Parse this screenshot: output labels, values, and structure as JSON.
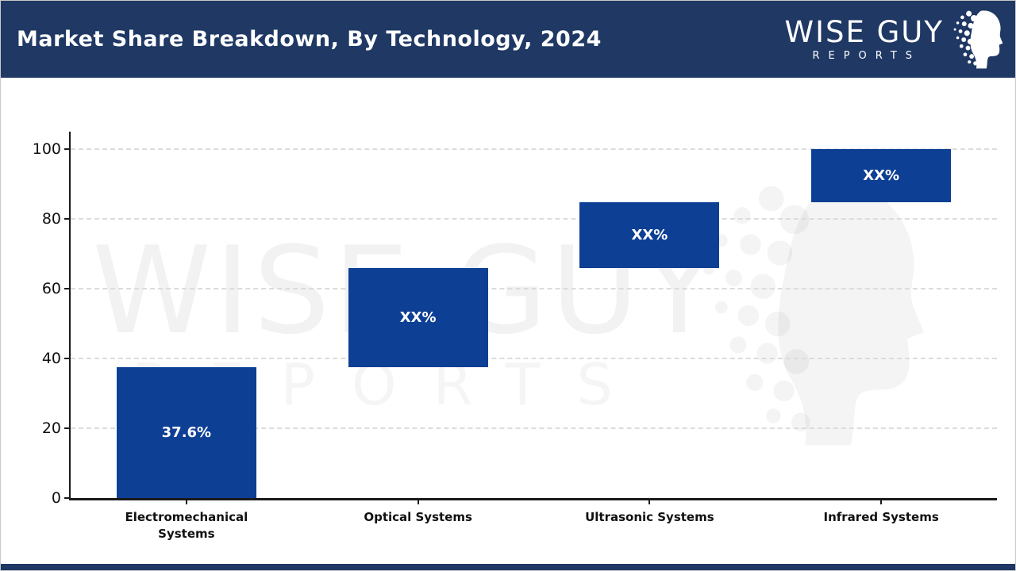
{
  "header": {
    "title": "Market Share Breakdown, By Technology, 2024",
    "logo": {
      "line1": "WISE GUY",
      "line2": "REPORTS"
    }
  },
  "watermark": {
    "line1": "WISE GUY",
    "line2": "REPORTS"
  },
  "chart_data": {
    "type": "bar",
    "variant": "waterfall-stacked-segments",
    "title": "Market Share Breakdown, By Technology, 2024",
    "categories": [
      "Electromechanical Systems",
      "Optical Systems",
      "Ultrasonic Systems",
      "Infrared Systems"
    ],
    "segments": [
      {
        "category": "Electromechanical Systems",
        "start": 0,
        "end": 37.6,
        "label": "37.6%"
      },
      {
        "category": "Optical Systems",
        "start": 37.6,
        "end": 65.9,
        "label": "XX%"
      },
      {
        "category": "Ultrasonic Systems",
        "start": 65.9,
        "end": 84.8,
        "label": "XX%"
      },
      {
        "category": "Infrared Systems",
        "start": 84.8,
        "end": 100,
        "label": "XX%"
      }
    ],
    "y_ticks": [
      0,
      20,
      40,
      60,
      80,
      100
    ],
    "ylim": [
      0,
      100
    ],
    "xlabel": "",
    "ylabel": "",
    "grid": "horizontal-dashed",
    "legend": "none",
    "bar_color": "#0d3f94",
    "bar_label_color": "#ffffff",
    "axis_color": "#1a1a1a",
    "grid_color": "#dcdcdc"
  },
  "colors": {
    "header_bg": "#1f3864",
    "footer_bg": "#1f3864",
    "chart_bg": "#ffffff",
    "title_text": "#ffffff"
  }
}
